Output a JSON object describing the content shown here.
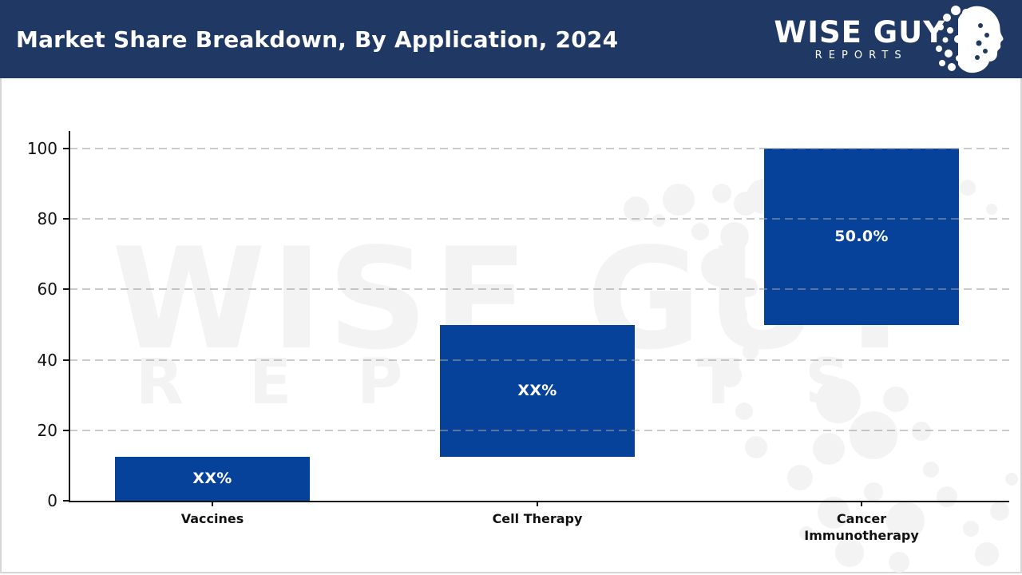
{
  "header": {
    "title": "Market Share Breakdown, By Application, 2024",
    "logo": {
      "line1": "WISE GUY",
      "line2": "REPORTS"
    }
  },
  "watermark": {
    "line1": "WISE GUY",
    "line2": "REPORTS"
  },
  "colors": {
    "header_bg": "#1f3864",
    "bar": "#07429a",
    "axis": "#151515",
    "watermark": "#f3f3f3",
    "page_border": "#d6d6d6",
    "title_text": "#ffffff"
  },
  "chart_data": {
    "type": "bar",
    "subtype": "floating-waterfall",
    "title": "Market Share Breakdown, By Application, 2024",
    "categories": [
      "Vaccines",
      "Cell Therapy",
      "Cancer\nImmunotherapy"
    ],
    "segments": [
      {
        "category": "Vaccines",
        "from": 0,
        "to": 12.5,
        "label": "XX%"
      },
      {
        "category": "Cell Therapy",
        "from": 12.5,
        "to": 50,
        "label": "XX%"
      },
      {
        "category": "Cancer Immunotherapy",
        "from": 50,
        "to": 100,
        "label": "50.0%"
      }
    ],
    "xlabel": "",
    "ylabel": "",
    "ylim": [
      0,
      105
    ],
    "yticks": [
      0,
      20,
      40,
      60,
      80,
      100
    ],
    "grid": true,
    "grid_style": "dashed",
    "grid_above_bars": true,
    "bar_color": "#07429a",
    "value_label_color": "#ffffff",
    "legend": "none"
  }
}
